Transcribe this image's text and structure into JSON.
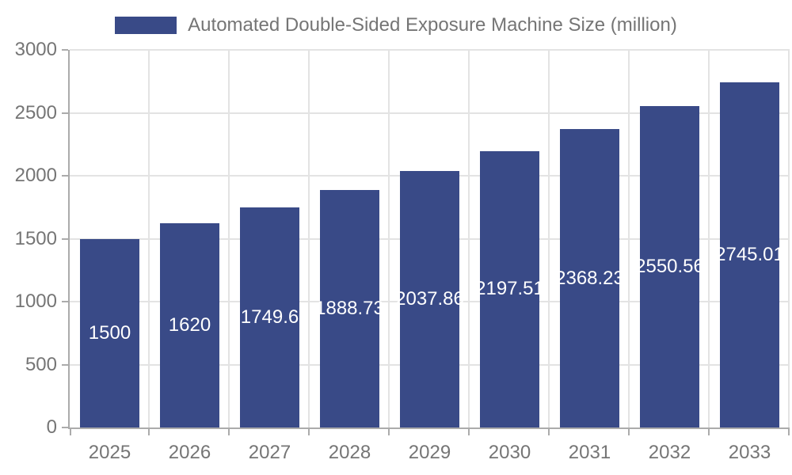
{
  "legend": {
    "label": "Automated Double-Sided Exposure Machine Size (million)"
  },
  "chart_data": {
    "type": "bar",
    "title": "Automated Double-Sided Exposure Machine Size (million)",
    "categories": [
      "2025",
      "2026",
      "2027",
      "2028",
      "2029",
      "2030",
      "2031",
      "2032",
      "2033"
    ],
    "values": [
      1500,
      1620,
      1749.6,
      1888.73,
      2037.86,
      2197.51,
      2368.23,
      2550.56,
      2745.01
    ],
    "value_labels": [
      "1500",
      "1620",
      "1749.6",
      "1888.73",
      "2037.86",
      "2197.51",
      "2368.23",
      "2550.56",
      "2745.01"
    ],
    "xlabel": "",
    "ylabel": "",
    "ylim": [
      0,
      3000
    ],
    "yticks": [
      0,
      500,
      1000,
      1500,
      2000,
      2500,
      3000
    ],
    "grid": true,
    "legend_position": "top",
    "value_label_position": "inside-center",
    "colors": {
      "bar": "#394A87",
      "grid_line": "#E3E3E3",
      "axis_line": "#ABABAB",
      "tick_text": "#757575",
      "value_text": "#FFFFFF",
      "background": "#FFFFFF"
    }
  }
}
